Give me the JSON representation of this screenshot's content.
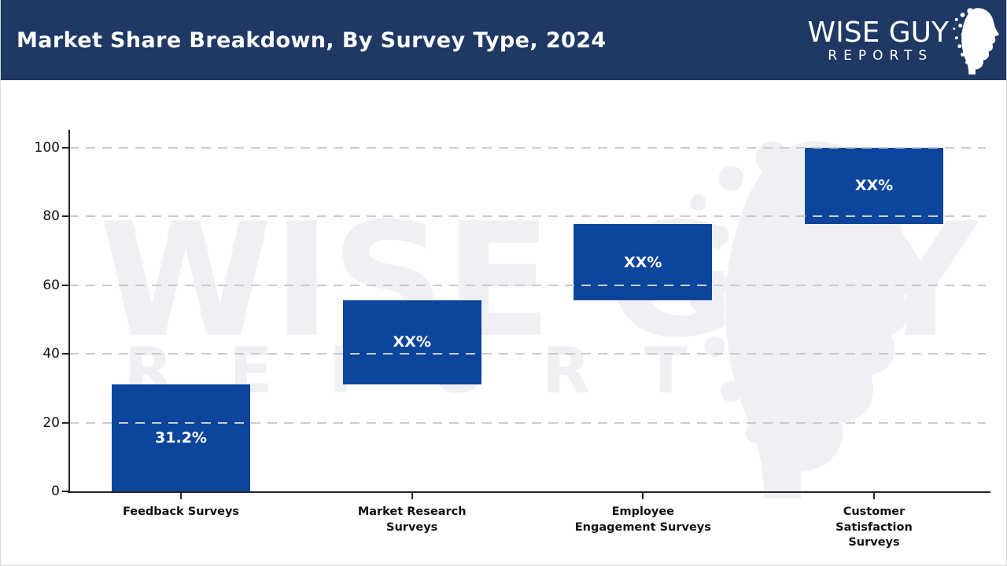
{
  "header": {
    "title": "Market Share Breakdown, By Survey Type, 2024",
    "background_color": "#1f3864",
    "logo": {
      "name": "WISE GUY",
      "sub": "REPORTS"
    }
  },
  "watermark": {
    "line1": "WISE GUY",
    "line2": "REPORTS"
  },
  "chart_data": {
    "type": "bar",
    "subtype": "floating-waterfall",
    "title": "Market Share Breakdown, By Survey Type, 2024",
    "categories": [
      "Feedback Surveys",
      "Market Research Surveys",
      "Employee Engagement Surveys",
      "Customer Satisfaction Surveys"
    ],
    "category_label_lines": [
      [
        "Feedback Surveys"
      ],
      [
        "Market Research",
        "Surveys"
      ],
      [
        "Employee",
        "Engagement Surveys"
      ],
      [
        "Customer",
        "Satisfaction",
        "Surveys"
      ]
    ],
    "segments": [
      {
        "category": "Feedback Surveys",
        "start": 0,
        "end": 31.2,
        "label": "31.2%"
      },
      {
        "category": "Market Research Surveys",
        "start": 31.2,
        "end": 55.5,
        "label": "XX%"
      },
      {
        "category": "Employee Engagement Surveys",
        "start": 55.5,
        "end": 77.7,
        "label": "XX%"
      },
      {
        "category": "Customer Satisfaction Surveys",
        "start": 77.7,
        "end": 100,
        "label": "XX%"
      }
    ],
    "yticks": [
      0,
      20,
      40,
      60,
      80,
      100
    ],
    "ylim": [
      0,
      105
    ],
    "xlabel": "",
    "ylabel": "",
    "legend": "none",
    "grid": "horizontal-dashed",
    "gridline_color": "#cbcbcb",
    "bar_color": "#0c459c",
    "bar_label_color": "#ffffff",
    "axis_color": "#262626"
  }
}
